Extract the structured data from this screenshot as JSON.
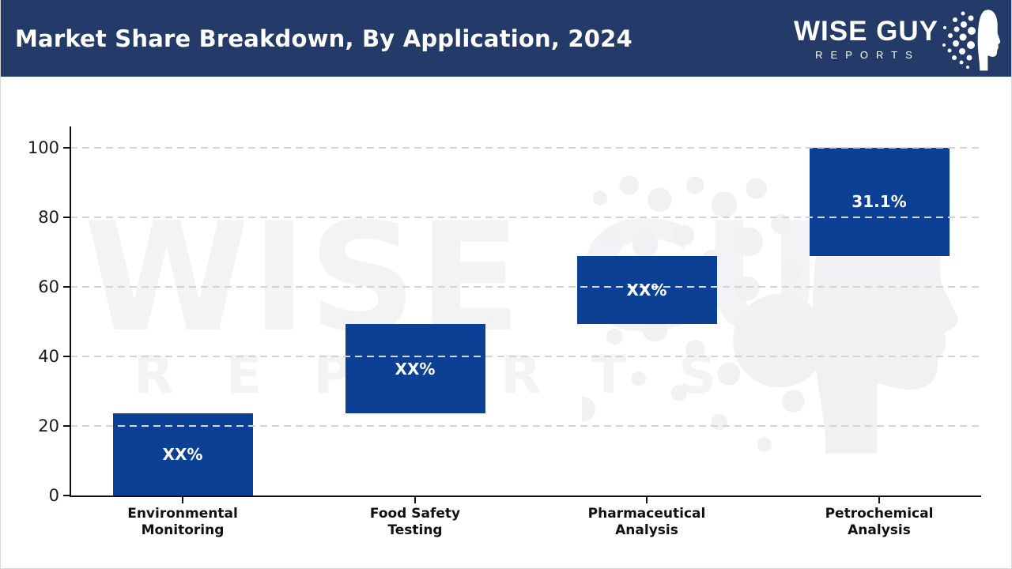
{
  "header": {
    "title": "Market Share Breakdown, By Application, 2024",
    "logo": {
      "name": "WISE GUY",
      "tagline": "REPORTS",
      "icon": "dotted-head-profile-icon"
    }
  },
  "watermark": {
    "brand": "WISE GUY",
    "brand_tagline": "REPORTS",
    "icon": "dotted-head-profile-icon"
  },
  "chart_data": {
    "type": "bar",
    "subtype": "waterfall",
    "title": "Market Share Breakdown, By Application, 2024",
    "unit": "percent",
    "categories": [
      "Environmental\nMonitoring",
      "Food Safety\nTesting",
      "Pharmaceutical\nAnalysis",
      "Petrochemical\nAnalysis"
    ],
    "segments": [
      {
        "category": "Environmental Monitoring",
        "start": 0,
        "end": 23.6,
        "value_label": "XX%"
      },
      {
        "category": "Food Safety Testing",
        "start": 23.6,
        "end": 49.3,
        "value_label": "XX%"
      },
      {
        "category": "Pharmaceutical Analysis",
        "start": 49.3,
        "end": 68.9,
        "value_label": "XX%"
      },
      {
        "category": "Petrochemical Analysis",
        "start": 68.9,
        "end": 100.0,
        "value_label": "31.1%"
      }
    ],
    "yticks": [
      0,
      20,
      40,
      60,
      80,
      100
    ],
    "ylim": [
      0,
      106
    ],
    "xlabel": "",
    "ylabel": "",
    "grid": "horizontal-dashed",
    "legend": "none",
    "bar_color": "#0c4094",
    "bar_label_color": "#ffffff"
  },
  "colors": {
    "header_bg": "#243a68",
    "bar": "#0c4094",
    "axis": "#111111",
    "grid": "#d4d4d4",
    "watermark": "#f2f2f4",
    "page_border": "#d9d9d9"
  }
}
